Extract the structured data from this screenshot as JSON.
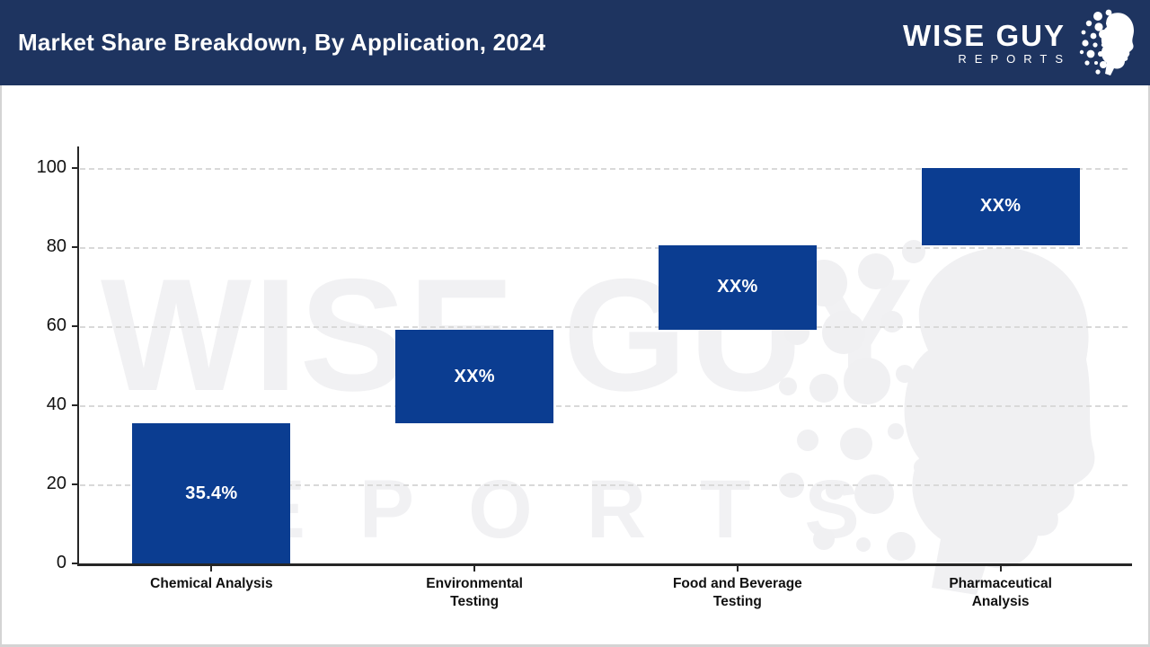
{
  "header": {
    "title": "Market Share Breakdown, By Application, 2024",
    "logo_line1": "WISE GUY",
    "logo_line2": "REPORTS",
    "bg_color": "#1e3460"
  },
  "watermark": {
    "line1": "WISE GUY",
    "line2": "REPORTS"
  },
  "chart_data": {
    "type": "bar",
    "subtype": "waterfall",
    "title": "Market Share Breakdown, By Application, 2024",
    "xlabel": "",
    "ylabel": "",
    "ylim": [
      0,
      105
    ],
    "yticks": [
      0,
      20,
      40,
      60,
      80,
      100
    ],
    "grid": "horizontal-dashed",
    "legend": "none",
    "bar_color": "#0b3d91",
    "bar_label_color": "#ffffff",
    "categories": [
      {
        "lines": [
          "Chemical Analysis"
        ]
      },
      {
        "lines": [
          "Environmental",
          "Testing"
        ]
      },
      {
        "lines": [
          "Food and Beverage",
          "Testing"
        ]
      },
      {
        "lines": [
          "Pharmaceutical",
          "Analysis"
        ]
      }
    ],
    "segments": [
      {
        "category": "Chemical Analysis",
        "start": 0,
        "end": 35.4,
        "size_pct": 35.4,
        "label": "35.4%"
      },
      {
        "category": "Environmental Testing",
        "start": 35.4,
        "end": 59.1,
        "size_pct": 23.7,
        "label": "XX%"
      },
      {
        "category": "Food and Beverage Testing",
        "start": 59.1,
        "end": 80.5,
        "size_pct": 21.4,
        "label": "XX%"
      },
      {
        "category": "Pharmaceutical Analysis",
        "start": 80.5,
        "end": 100,
        "size_pct": 19.5,
        "label": "XX%"
      }
    ]
  }
}
